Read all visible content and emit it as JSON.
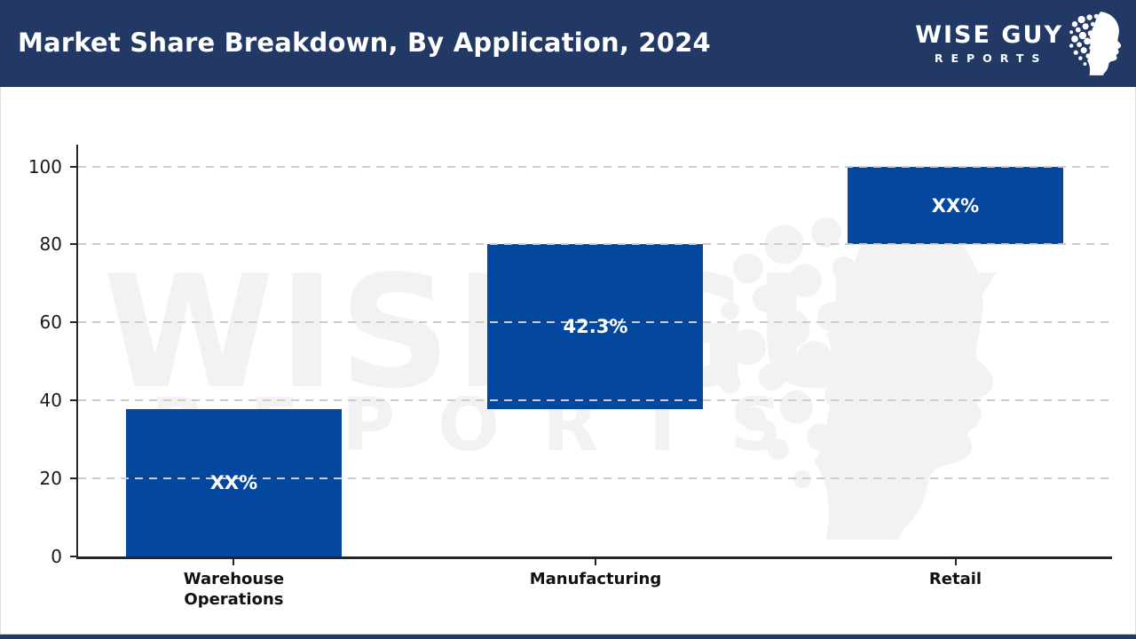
{
  "header": {
    "title": "Market Share Breakdown, By Application, 2024",
    "logo": {
      "wordmark": "WISE GUY",
      "subtitle": "REPORTS"
    }
  },
  "watermark": {
    "wordmark": "WISE GUY",
    "subtitle": "REPORTS"
  },
  "chart_data": {
    "type": "bar",
    "variant": "floating-segment-waterfall",
    "title": "Market Share Breakdown, By Application, 2024",
    "categories": [
      "Warehouse Operations",
      "Manufacturing",
      "Retail"
    ],
    "category_label_lines": [
      [
        "Warehouse",
        "Operations"
      ],
      [
        "Manufacturing"
      ],
      [
        "Retail"
      ]
    ],
    "bars": [
      {
        "category": "Warehouse Operations",
        "start": 0,
        "end": 37.7,
        "label": "XX%"
      },
      {
        "category": "Manufacturing",
        "start": 37.7,
        "end": 80,
        "label": "42.3%"
      },
      {
        "category": "Retail",
        "start": 80,
        "end": 100,
        "label": "XX%"
      }
    ],
    "xlabel": "",
    "ylabel": "",
    "yticks": [
      0,
      20,
      40,
      60,
      80,
      100
    ],
    "ylim": [
      0,
      105.6
    ],
    "grid": {
      "axis": "y",
      "linestyle": "dashed",
      "color": "#cccccc",
      "over_bars": true
    },
    "legend": false,
    "bar_color": "#04479E",
    "bar_label_color": "#ffffff"
  },
  "colors": {
    "header_bg": "#223966",
    "footer_bg": "#223966",
    "canvas_bg": "#ffffff",
    "axis_color": "#262626",
    "tick_label_color": "#1a1a1a",
    "watermark_color": "#f2f2f4",
    "title_color": "#ffffff"
  }
}
